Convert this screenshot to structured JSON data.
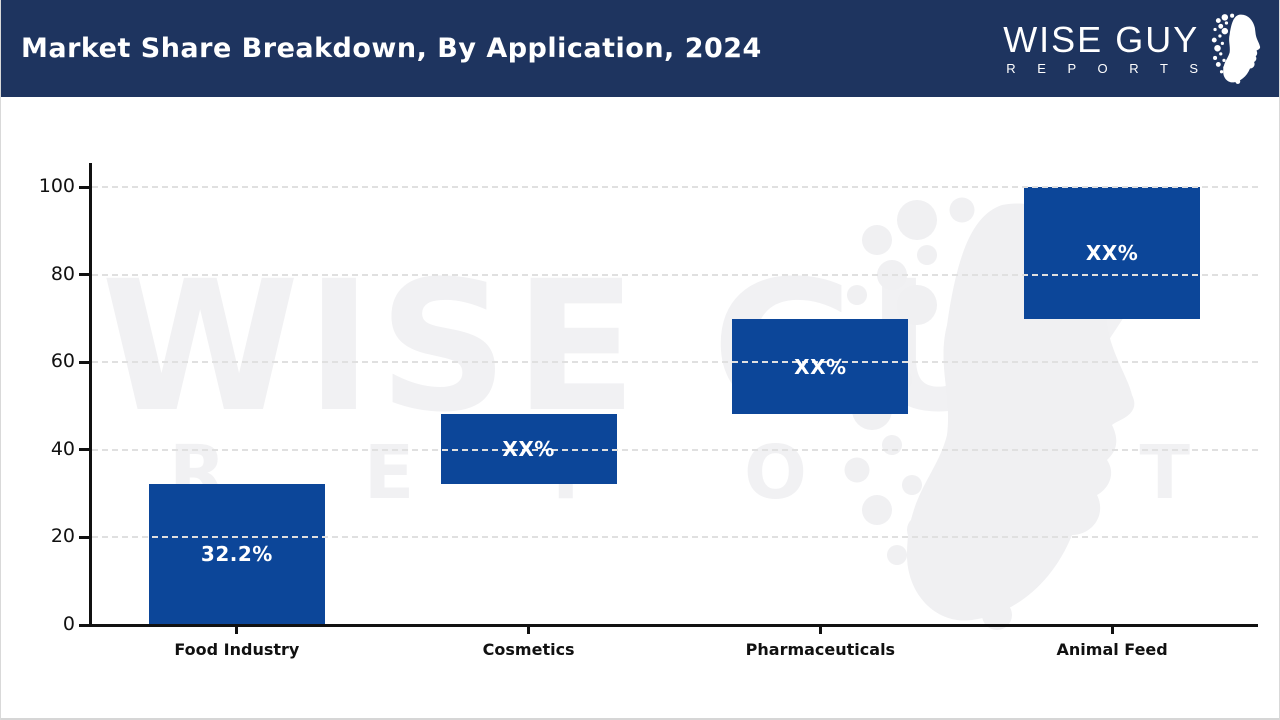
{
  "header": {
    "title": "Market Share Breakdown, By Application, 2024",
    "logo": {
      "brand_line1": "WISE GUY",
      "brand_line2": "R E P O R T S"
    }
  },
  "watermark": {
    "line1": "WISE GUY",
    "line2": "R E P O R T S"
  },
  "chart_data": {
    "type": "bar",
    "subtype": "waterfall-floating-bars",
    "title": "Market Share Breakdown, By Application, 2024",
    "categories": [
      "Food Industry",
      "Cosmetics",
      "Pharmaceuticals",
      "Animal Feed"
    ],
    "series": [
      {
        "name": "Market Share",
        "segments": [
          {
            "category": "Food Industry",
            "start": 0,
            "end": 32.2,
            "label": "32.2%"
          },
          {
            "category": "Cosmetics",
            "start": 32.2,
            "end": 48.2,
            "label": "XX%"
          },
          {
            "category": "Pharmaceuticals",
            "start": 48.2,
            "end": 69.8,
            "label": "XX%"
          },
          {
            "category": "Animal Feed",
            "start": 69.8,
            "end": 100,
            "label": "XX%"
          }
        ]
      }
    ],
    "y_ticks": [
      0,
      20,
      40,
      60,
      80,
      100
    ],
    "ylim": [
      0,
      105.5
    ],
    "xlabel": "",
    "ylabel": "",
    "grid": "horizontal-dashed-over-bars",
    "legend": "none"
  },
  "colors": {
    "header_bg": "#1e345f",
    "bar": "#0c4699",
    "bar_label": "#ffffff",
    "gridline": "#e0e0e0",
    "axis": "#111111",
    "watermark": "#f1f1f3",
    "page_bg": "#ffffff"
  }
}
